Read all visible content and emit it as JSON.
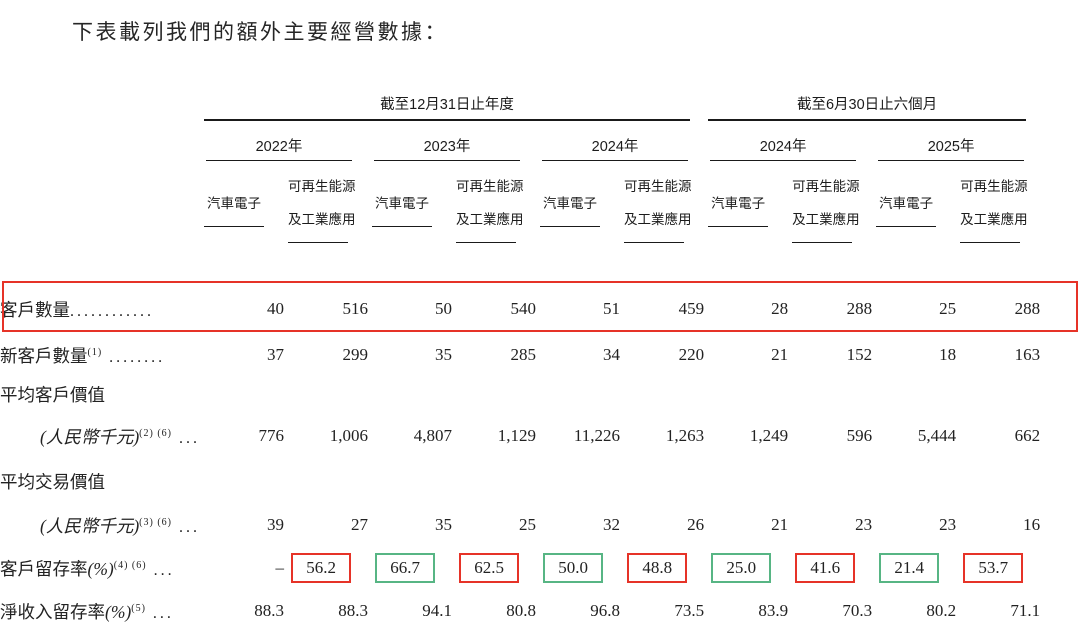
{
  "title": "下表載列我們的額外主要經營數據：",
  "colors": {
    "red": "#e63328",
    "green": "#57b584",
    "row_box_red": "#e63328"
  },
  "table": {
    "groups": [
      {
        "title": "截至12月31日止年度",
        "years": [
          "2022年",
          "2023年",
          "2024年"
        ]
      },
      {
        "title": "截至6月30日止六個月",
        "years": [
          "2024年",
          "2025年"
        ]
      }
    ],
    "subcolumns": {
      "first": "汽車電子",
      "second_line1": "可再生能源",
      "second_line2": "及工業應用"
    },
    "rows": [
      {
        "label": {
          "text": "客戶數量",
          "leader": "............"
        },
        "cells": [
          "40",
          "516",
          "50",
          "540",
          "51",
          "459",
          "28",
          "288",
          "25",
          "288"
        ],
        "row_box": "red"
      },
      {
        "label": {
          "text": "新客戶數量",
          "sup": "(1)",
          "leader": " ........"
        },
        "cells": [
          "37",
          "299",
          "35",
          "285",
          "34",
          "220",
          "21",
          "152",
          "18",
          "163"
        ]
      },
      {
        "label": {
          "text": "平均客戶價值"
        },
        "cells": null
      },
      {
        "label": {
          "text": "(人民幣千元)",
          "italic": true,
          "sup": "(2) (6)",
          "leader": " ...",
          "indent": true
        },
        "cells": [
          "776",
          "1,006",
          "4,807",
          "1,129",
          "11,226",
          "1,263",
          "1,249",
          "596",
          "5,444",
          "662"
        ]
      },
      {
        "label": {
          "text": "平均交易價值"
        },
        "cells": null
      },
      {
        "label": {
          "text": "(人民幣千元)",
          "italic": true,
          "sup": "(3) (6)",
          "leader": " ...",
          "indent": true
        },
        "cells": [
          "39",
          "27",
          "35",
          "25",
          "32",
          "26",
          "21",
          "23",
          "23",
          "16"
        ]
      },
      {
        "label": {
          "text": "客戶留存率",
          "italic_suffix": "(%)",
          "sup": "(4) (6)",
          "leader": " ..."
        },
        "cells": [
          "–",
          "56.2",
          "66.7",
          "62.5",
          "50.0",
          "48.8",
          "25.0",
          "41.6",
          "21.4",
          "53.7"
        ],
        "boxes": [
          null,
          "red",
          "green",
          "red",
          "green",
          "red",
          "green",
          "red",
          "green",
          "red"
        ]
      },
      {
        "label": {
          "text": "淨收入留存率",
          "italic_suffix": "(%)",
          "sup": "(5)",
          "leader": " ..."
        },
        "cells": [
          "88.3",
          "88.3",
          "94.1",
          "80.8",
          "96.8",
          "73.5",
          "83.9",
          "70.3",
          "80.2",
          "71.1"
        ]
      }
    ]
  }
}
